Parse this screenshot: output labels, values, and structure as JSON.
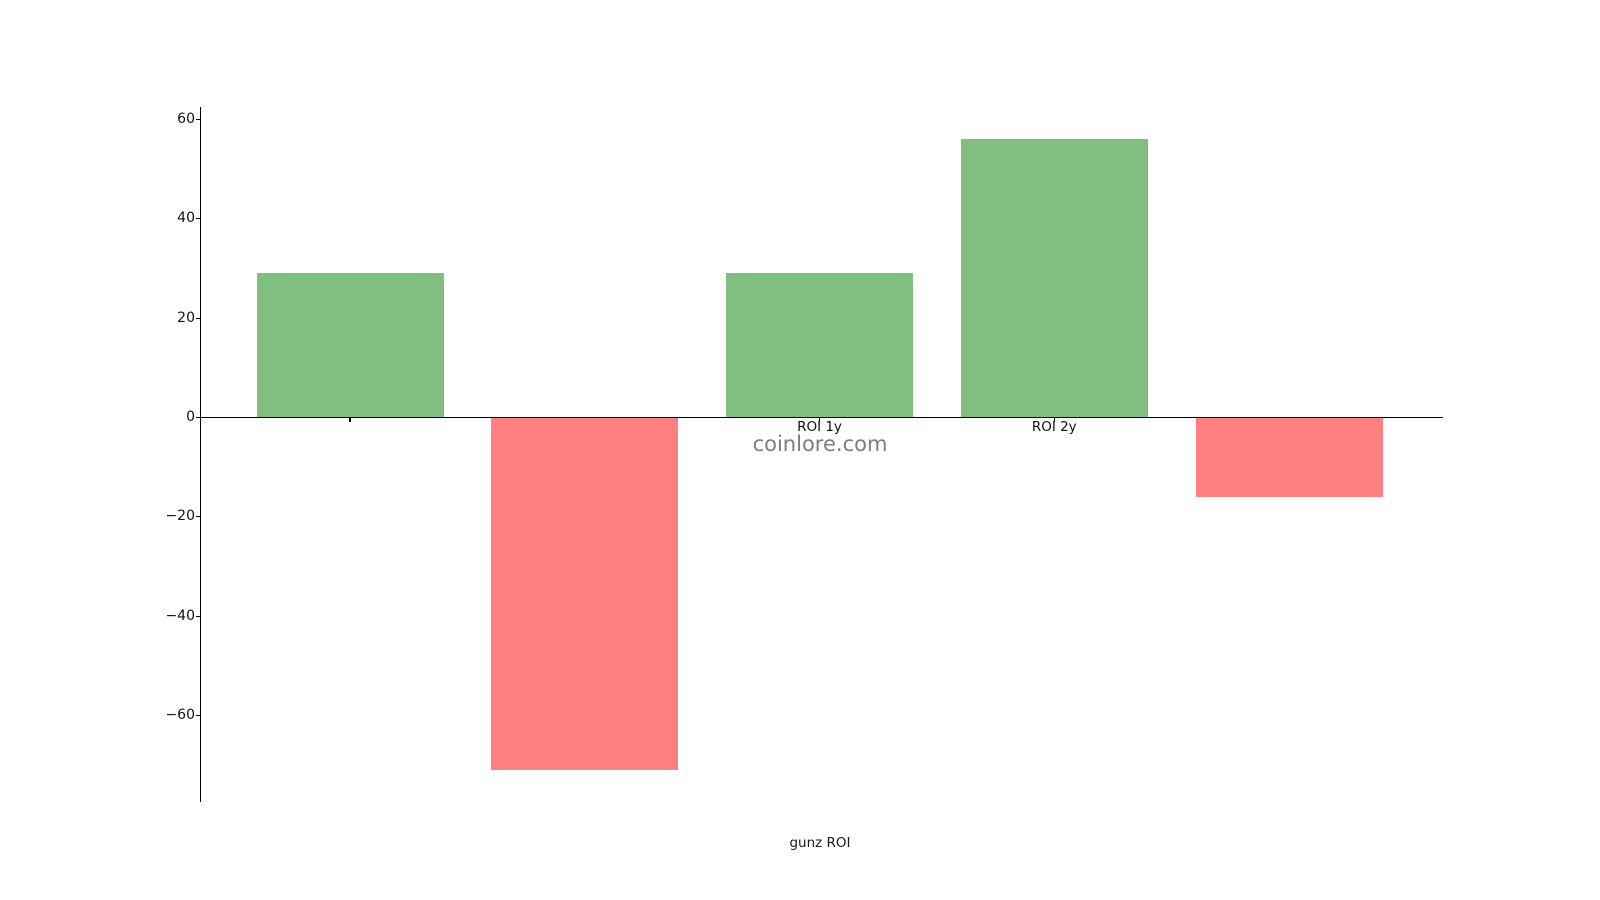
{
  "watermark": "coinlore.com",
  "chart_data": {
    "type": "bar",
    "title": "",
    "xlabel": "gunz ROI",
    "ylabel": "",
    "categories": [
      "",
      "",
      "ROI 1y",
      "ROI 2y",
      ""
    ],
    "values": [
      29,
      -71,
      29,
      56,
      -16
    ],
    "series_name": "gunz ROI %",
    "bar_colors": [
      "#80bf80",
      "#ff8080",
      "#80bf80",
      "#80bf80",
      "#ff8080"
    ],
    "positive_color": "#80bf80",
    "negative_color": "#ff8080",
    "y_ticks": [
      60,
      40,
      20,
      0,
      -20,
      -40,
      -60
    ],
    "y_tick_labels": [
      "60",
      "40",
      "20",
      "0",
      "−20",
      "−40",
      "−60"
    ],
    "ylim": [
      -77.4,
      62.4
    ],
    "grid": false,
    "legend": null,
    "legend_position": "none",
    "axis_color": "#000000",
    "watermark_color": "#7d7d7d"
  }
}
